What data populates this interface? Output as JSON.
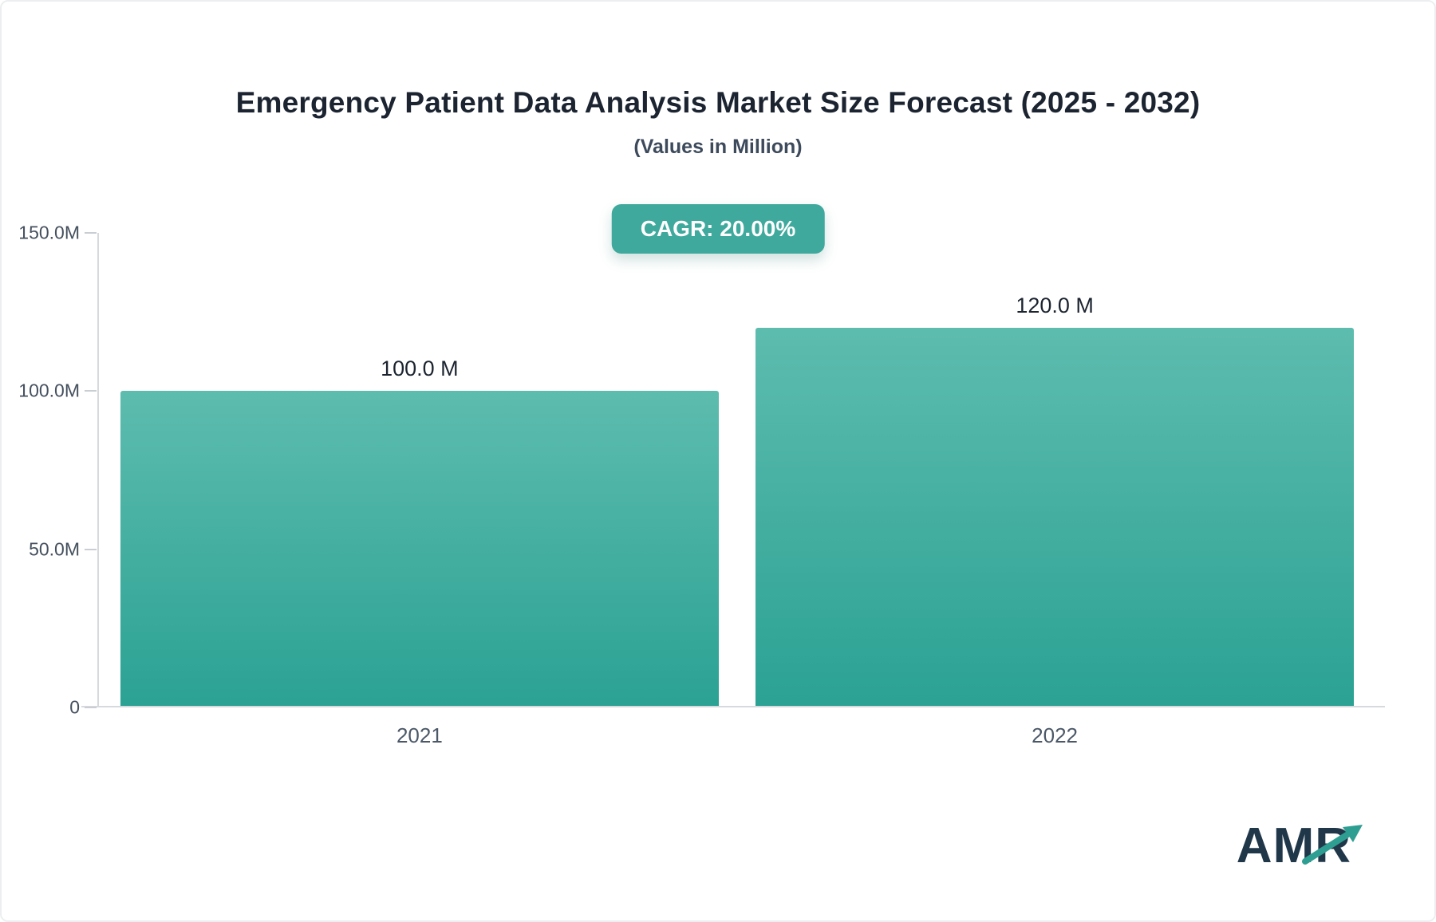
{
  "header": {
    "title": "Emergency Patient Data Analysis Market Size Forecast (2025 - 2032)",
    "subtitle": "(Values in Million)"
  },
  "badge": {
    "label": "CAGR: 20.00%",
    "bg_color": "#3fa99d",
    "text_color": "#ffffff"
  },
  "chart_data": {
    "type": "bar",
    "title": "Emergency Patient Data Analysis Market Size Forecast (2025 - 2032)",
    "subtitle": "(Values in Million)",
    "categories": [
      "2021",
      "2022"
    ],
    "values": [
      100.0,
      120.0
    ],
    "value_labels": [
      "100.0 M",
      "120.0 M"
    ],
    "unit": "Million",
    "ylim": [
      0,
      150
    ],
    "y_ticks": [
      {
        "value": 0,
        "label": "0"
      },
      {
        "value": 50,
        "label": "50.0M"
      },
      {
        "value": 100,
        "label": "100.0M"
      },
      {
        "value": 150,
        "label": "150.0M"
      }
    ],
    "grid": false,
    "legend": false,
    "bar_gradient_top": "#5dbcae",
    "bar_gradient_bottom": "#2ba294"
  },
  "logo": {
    "text": "AMR",
    "text_color": "#20374a",
    "arrow_color": "#2f9e92"
  }
}
